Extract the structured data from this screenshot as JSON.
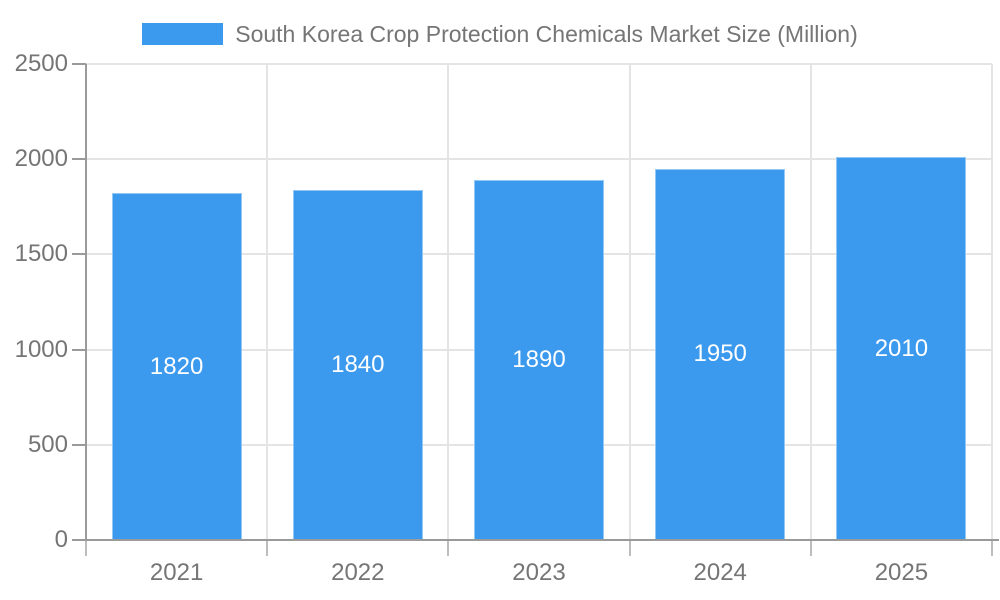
{
  "theme": {
    "bar_color": "#3b99ee",
    "grid_color": "#e4e4e4",
    "axis_color": "#9a9a9a",
    "tick_color": "#bdbdbd",
    "text_color": "#757575",
    "value_label_color": "#ffffff",
    "background": "#ffffff"
  },
  "legend": {
    "label": "South Korea Crop Protection Chemicals Market Size (Million)"
  },
  "chart_data": {
    "type": "bar",
    "title": "South Korea Crop Protection Chemicals Market Size (Million)",
    "categories": [
      "2021",
      "2022",
      "2023",
      "2024",
      "2025"
    ],
    "values": [
      1820,
      1840,
      1890,
      1950,
      2010
    ],
    "bar_labels": [
      "1820",
      "1840",
      "1890",
      "1950",
      "2010"
    ],
    "bar_labels_visible": true,
    "xlabel": "",
    "ylabel": "",
    "ylim": [
      0,
      2500
    ],
    "yticks": [
      0,
      500,
      1000,
      1500,
      2000,
      2500
    ],
    "grid": true,
    "legend_position": "top"
  }
}
